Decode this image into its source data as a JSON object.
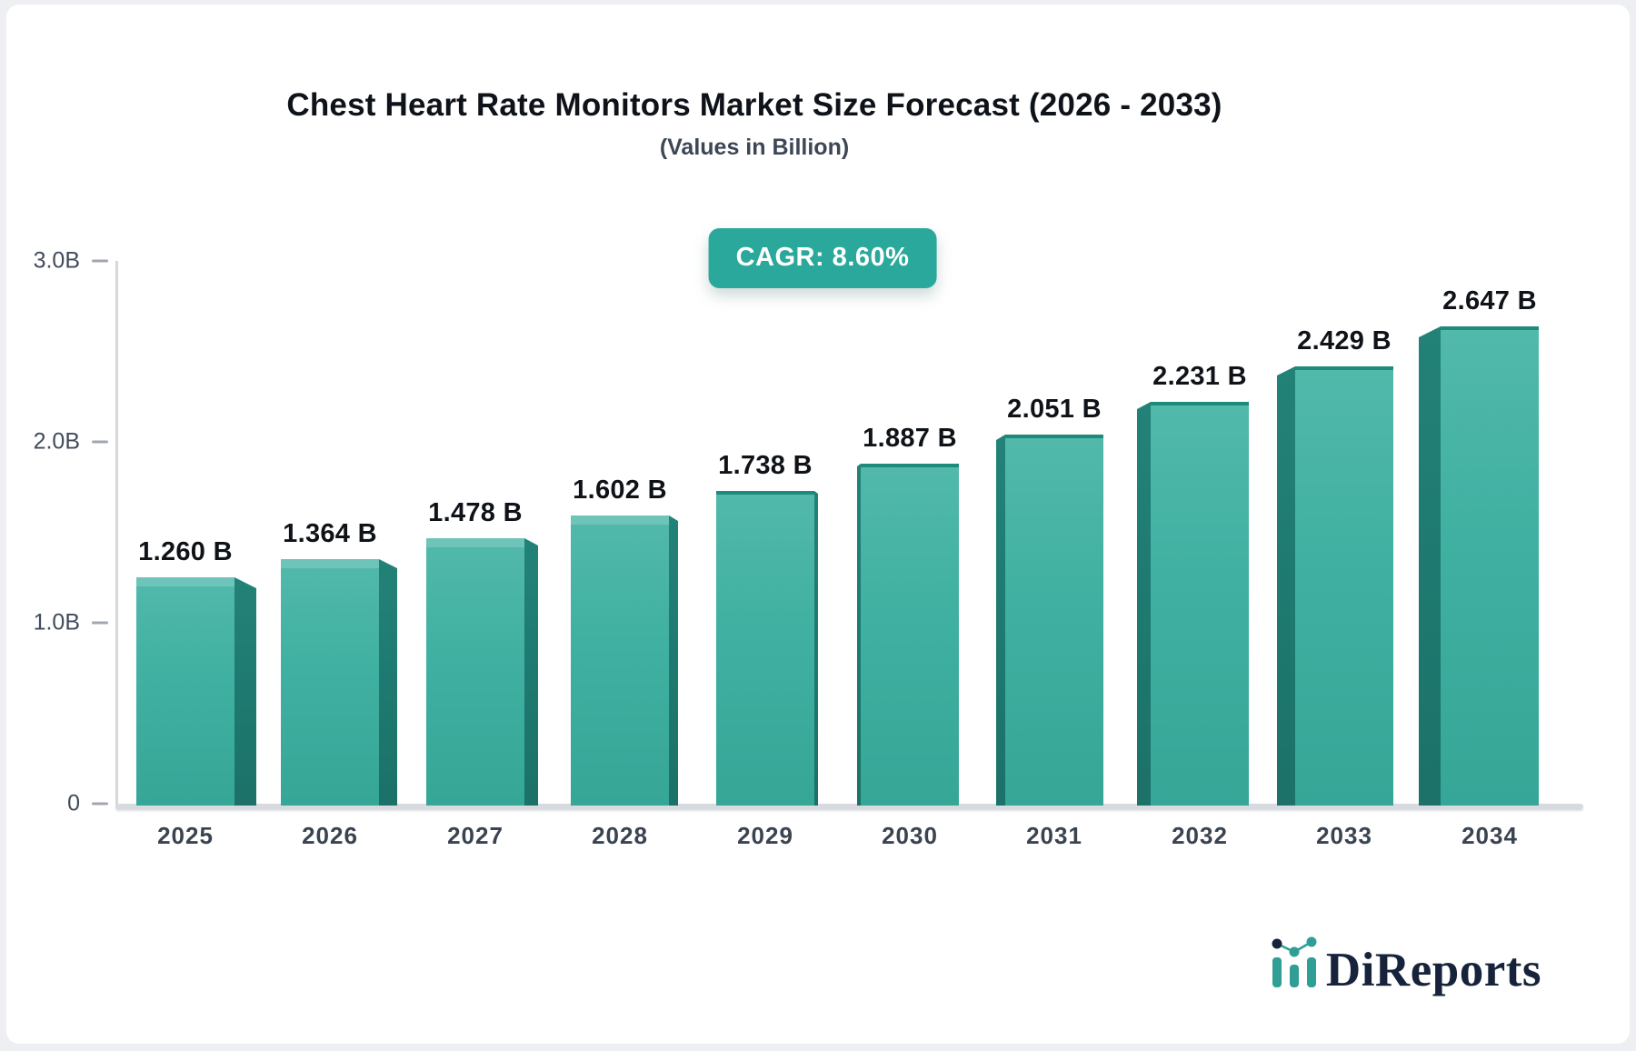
{
  "page": {
    "background_color": "#edeff2",
    "card_background_color": "#ffffff"
  },
  "header": {
    "title": "Chest Heart Rate Monitors Market Size Forecast (2026 - 2033)",
    "subtitle": "(Values in Billion)"
  },
  "badge": {
    "label": "CAGR: 8.60%",
    "background_color": "#2aa89b",
    "text_color": "#ffffff"
  },
  "chart_data": {
    "type": "bar",
    "title": "Chest Heart Rate Monitors Market Size Forecast (2026 - 2033)",
    "subtitle": "(Values in Billion)",
    "cagr": "8.60%",
    "unit": "Billion",
    "categories": [
      "2025",
      "2026",
      "2027",
      "2028",
      "2029",
      "2030",
      "2031",
      "2032",
      "2033",
      "2034"
    ],
    "values": [
      1.26,
      1.364,
      1.478,
      1.602,
      1.738,
      1.887,
      2.051,
      2.231,
      2.429,
      2.647
    ],
    "value_labels": [
      "1.260 B",
      "1.364 B",
      "1.478 B",
      "1.602 B",
      "1.738 B",
      "1.887 B",
      "2.051 B",
      "2.231 B",
      "2.429 B",
      "2.647 B"
    ],
    "ylim": [
      0,
      3.0
    ],
    "yticks": [
      0,
      1.0,
      2.0,
      3.0
    ],
    "ytick_labels": [
      "0",
      "1.0B",
      "2.0B",
      "3.0B"
    ],
    "grid": false,
    "legend": "none",
    "bar_style": "3d-perspective",
    "colors": {
      "bar_front_top": "#52b9ab",
      "bar_front_bottom": "#36a697",
      "bar_side": "#1e7a70",
      "bar_top_edge": "#1e8a7c",
      "axis_line": "#d6d9dd",
      "tick_label": "#414b5c",
      "value_label": "#0f1318"
    }
  },
  "branding": {
    "logo_text": "DiReports",
    "logo_icon": "mini-bar-line-chart-icon",
    "logo_text_color": "#16233a",
    "logo_accent_color": "#2f9f95"
  }
}
